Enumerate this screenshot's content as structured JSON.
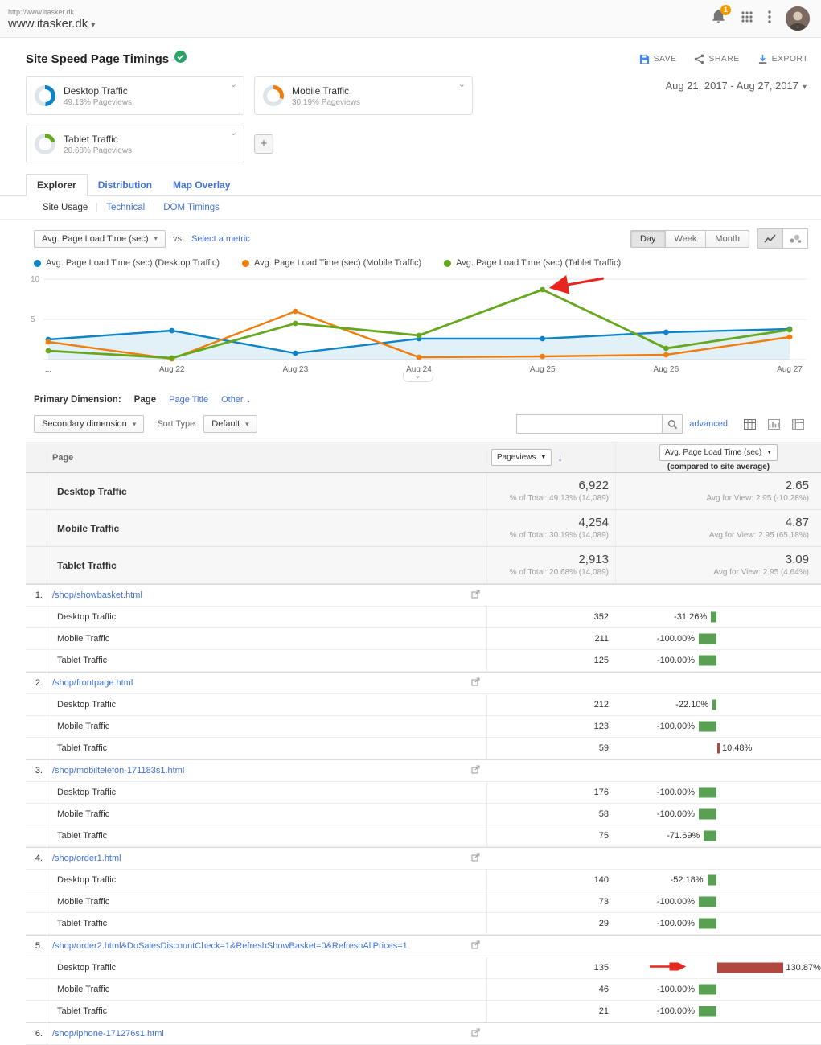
{
  "topbar": {
    "url": "http://www.itasker.dk",
    "site": "www.itasker.dk",
    "notifications_badge": "1"
  },
  "header": {
    "title": "Site Speed Page Timings",
    "save_label": "SAVE",
    "share_label": "SHARE",
    "export_label": "EXPORT"
  },
  "date_range": "Aug 21, 2017 - Aug 27, 2017",
  "segments": [
    {
      "name": "Desktop Traffic",
      "detail": "49.13% Pageviews",
      "color": "#0d84c8",
      "pct": 49.13
    },
    {
      "name": "Mobile Traffic",
      "detail": "30.19% Pageviews",
      "color": "#ee7e0e",
      "pct": 30.19
    },
    {
      "name": "Tablet Traffic",
      "detail": "20.68% Pageviews",
      "color": "#65a81e",
      "pct": 20.68
    }
  ],
  "tabs": {
    "explorer": "Explorer",
    "distribution": "Distribution",
    "map_overlay": "Map Overlay"
  },
  "subtabs": {
    "site_usage": "Site Usage",
    "technical": "Technical",
    "dom_timings": "DOM Timings"
  },
  "metric_bar": {
    "metric": "Avg. Page Load Time (sec)",
    "vs_label": "vs.",
    "select_metric": "Select a metric",
    "day": "Day",
    "week": "Week",
    "month": "Month"
  },
  "primary_dimension": {
    "label": "Primary Dimension:",
    "page": "Page",
    "page_title": "Page Title",
    "other": "Other"
  },
  "controls": {
    "secondary_dimension": "Secondary dimension",
    "sort_type_label": "Sort Type:",
    "sort_type_value": "Default",
    "search_value": "",
    "advanced_label": "advanced"
  },
  "icons": {
    "caret_down": "▾",
    "chevron_down": "⌄",
    "dropdown_tri": "▼",
    "sort_desc": "↓",
    "plus": "+"
  },
  "chart_data": {
    "type": "line",
    "title": "",
    "xlabel": "",
    "ylabel": "Avg. Page Load Time (sec)",
    "x": [
      "...",
      "Aug 22",
      "Aug 23",
      "Aug 24",
      "Aug 25",
      "Aug 26",
      "Aug 27"
    ],
    "ylim": [
      0,
      10
    ],
    "yticks": [
      5,
      10
    ],
    "grid": true,
    "legend_position": "top",
    "series": [
      {
        "name": "Avg. Page Load Time (sec) (Desktop Traffic)",
        "color": "#0d84c8",
        "area": true,
        "values": [
          2.5,
          3.6,
          0.8,
          2.6,
          2.6,
          3.4,
          3.8
        ]
      },
      {
        "name": "Avg. Page Load Time (sec) (Mobile Traffic)",
        "color": "#ee7e0e",
        "area": false,
        "values": [
          2.2,
          0.1,
          6.0,
          0.3,
          0.4,
          0.6,
          2.8
        ]
      },
      {
        "name": "Avg. Page Load Time (sec) (Tablet Traffic)",
        "color": "#65a81e",
        "area": false,
        "values": [
          1.1,
          0.2,
          4.5,
          3.0,
          8.7,
          1.4,
          3.7
        ]
      }
    ],
    "annotation": {
      "type": "arrow",
      "target_series": 2,
      "target_index": 4
    }
  },
  "table": {
    "columns": {
      "page": "Page",
      "pageviews": "Pageviews",
      "metric": "Avg. Page Load Time (sec)",
      "metric_sub": "(compared to site average)"
    },
    "summary": [
      {
        "label": "Desktop Traffic",
        "pageviews": "6,922",
        "pv_sub": "% of Total: 49.13% (14,089)",
        "metric": "2.65",
        "metric_sub": "Avg for View: 2.95 (-10.28%)"
      },
      {
        "label": "Mobile Traffic",
        "pageviews": "4,254",
        "pv_sub": "% of Total: 30.19% (14,089)",
        "metric": "4.87",
        "metric_sub": "Avg for View: 2.95 (65.18%)"
      },
      {
        "label": "Tablet Traffic",
        "pageviews": "2,913",
        "pv_sub": "% of Total: 20.68% (14,089)",
        "metric": "3.09",
        "metric_sub": "Avg for View: 2.95 (4.64%)"
      }
    ],
    "groups": [
      {
        "num": "1.",
        "page": "/shop/showbasket.html",
        "rows": [
          {
            "label": "Desktop Traffic",
            "pageviews": "352",
            "delta": -31.26,
            "delta_label": "-31.26%"
          },
          {
            "label": "Mobile Traffic",
            "pageviews": "211",
            "delta": -100.0,
            "delta_label": "-100.00%"
          },
          {
            "label": "Tablet Traffic",
            "pageviews": "125",
            "delta": -100.0,
            "delta_label": "-100.00%"
          }
        ]
      },
      {
        "num": "2.",
        "page": "/shop/frontpage.html",
        "rows": [
          {
            "label": "Desktop Traffic",
            "pageviews": "212",
            "delta": -22.1,
            "delta_label": "-22.10%"
          },
          {
            "label": "Mobile Traffic",
            "pageviews": "123",
            "delta": -100.0,
            "delta_label": "-100.00%"
          },
          {
            "label": "Tablet Traffic",
            "pageviews": "59",
            "delta": 10.48,
            "delta_label": "10.48%"
          }
        ]
      },
      {
        "num": "3.",
        "page": "/shop/mobiltelefon-171183s1.html",
        "rows": [
          {
            "label": "Desktop Traffic",
            "pageviews": "176",
            "delta": -100.0,
            "delta_label": "-100.00%"
          },
          {
            "label": "Mobile Traffic",
            "pageviews": "58",
            "delta": -100.0,
            "delta_label": "-100.00%"
          },
          {
            "label": "Tablet Traffic",
            "pageviews": "75",
            "delta": -71.69,
            "delta_label": "-71.69%"
          }
        ]
      },
      {
        "num": "4.",
        "page": "/shop/order1.html",
        "rows": [
          {
            "label": "Desktop Traffic",
            "pageviews": "140",
            "delta": -52.18,
            "delta_label": "-52.18%"
          },
          {
            "label": "Mobile Traffic",
            "pageviews": "73",
            "delta": -100.0,
            "delta_label": "-100.00%"
          },
          {
            "label": "Tablet Traffic",
            "pageviews": "29",
            "delta": -100.0,
            "delta_label": "-100.00%"
          }
        ]
      },
      {
        "num": "5.",
        "page": "/shop/order2.html&DoSalesDiscountCheck=1&RefreshShowBasket=0&RefreshAllPrices=1",
        "rows": [
          {
            "label": "Desktop Traffic",
            "pageviews": "135",
            "delta": 130.87,
            "delta_label": "130.87%",
            "arrow": true
          },
          {
            "label": "Mobile Traffic",
            "pageviews": "46",
            "delta": -100.0,
            "delta_label": "-100.00%"
          },
          {
            "label": "Tablet Traffic",
            "pageviews": "21",
            "delta": -100.0,
            "delta_label": "-100.00%"
          }
        ]
      },
      {
        "num": "6.",
        "page": "/shop/iphone-171276s1.html",
        "rows": []
      }
    ]
  },
  "colors": {
    "link_blue": "#4272d7",
    "delta_green": "#5aa052",
    "delta_red": "#b2473e",
    "annotation_red": "#e8261f",
    "badge_orange": "#f29900",
    "verified_green": "#27a567"
  }
}
